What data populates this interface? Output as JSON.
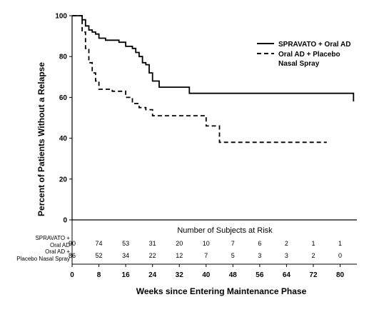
{
  "chart_data": {
    "type": "line",
    "step": true,
    "xlabel": "Weeks since Entering Maintenance Phase",
    "ylabel": "Percent of Patients Without a Relapse",
    "xlim": [
      0,
      85
    ],
    "ylim": [
      0,
      100
    ],
    "x_ticks": [
      "0",
      "8",
      "16",
      "24",
      "32",
      "40",
      "48",
      "56",
      "64",
      "72",
      "80"
    ],
    "y_ticks": [
      "0",
      "20",
      "40",
      "60",
      "80",
      "100"
    ],
    "legend_position": "top-right",
    "legend": [
      {
        "text": "SPRAVATO + Oral AD",
        "style": "solid",
        "series": 0
      },
      {
        "text": "Oral AD + Placebo",
        "style": "dashed",
        "series": 1
      },
      {
        "text": "Nasal Spray",
        "style": "none",
        "series": 1
      }
    ],
    "series": [
      {
        "style": "solid",
        "color": "#000000",
        "x": [
          0,
          2,
          3,
          4,
          5,
          6,
          7,
          8,
          10,
          14,
          16,
          18,
          19,
          20,
          21,
          22,
          23,
          24,
          26,
          32,
          35,
          84
        ],
        "y": [
          100,
          100,
          98,
          95,
          93,
          92,
          91,
          89,
          88,
          87,
          85,
          84,
          82,
          80,
          77,
          76,
          72,
          68,
          65,
          65,
          62,
          58
        ]
      },
      {
        "style": "dashed",
        "color": "#000000",
        "x": [
          0,
          2,
          3,
          4,
          5,
          6,
          7,
          8,
          12,
          16,
          18,
          20,
          22,
          24,
          32,
          38,
          40,
          42,
          44,
          76
        ],
        "y": [
          100,
          100,
          92,
          84,
          77,
          72,
          68,
          64,
          63,
          60,
          57,
          55,
          54,
          51,
          51,
          51,
          46,
          46,
          38,
          38
        ]
      }
    ],
    "risk_table": {
      "title": "Number of Subjects at Risk",
      "weeks": [
        0,
        8,
        16,
        24,
        32,
        40,
        48,
        56,
        64,
        72,
        80
      ],
      "rows": [
        {
          "label_line1": "SPRAVATO +",
          "label_line2": "Oral AD",
          "values": [
            "90",
            "74",
            "53",
            "31",
            "20",
            "10",
            "7",
            "6",
            "2",
            "1",
            "1"
          ]
        },
        {
          "label_line1": "Oral AD +",
          "label_line2": "Placebo Nasal Spray",
          "values": [
            "86",
            "52",
            "34",
            "22",
            "12",
            "7",
            "5",
            "3",
            "3",
            "2",
            "0"
          ]
        }
      ]
    }
  }
}
